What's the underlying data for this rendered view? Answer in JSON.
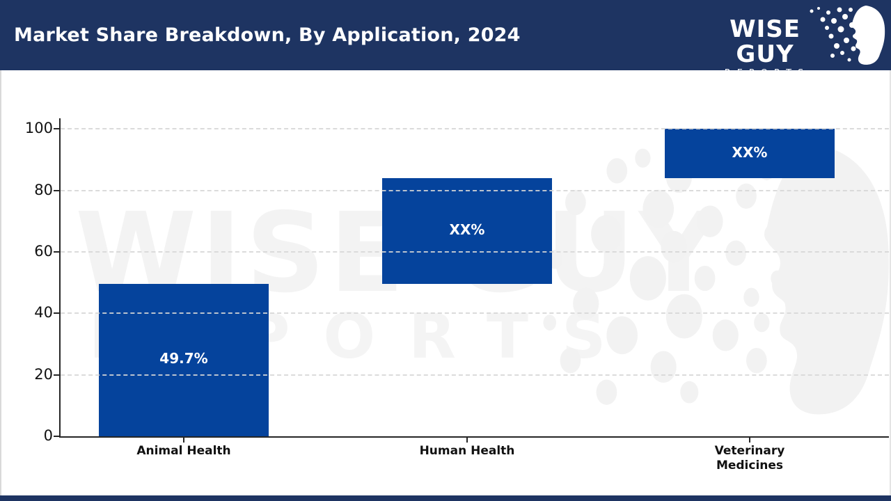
{
  "header": {
    "title": "Market Share Breakdown, By Application, 2024",
    "logo": {
      "line1": "WISE GUY",
      "line2": "REPORTS"
    }
  },
  "watermark": {
    "line1": "WISE GUY",
    "line2": "REPORTS"
  },
  "chart_data": {
    "type": "bar",
    "subtype": "floating-segment-bar",
    "title": "Market Share Breakdown, By Application, 2024",
    "categories": [
      "Animal Health",
      "Human Health",
      "Veterinary Medicines"
    ],
    "category_lines": [
      [
        "Animal Health"
      ],
      [
        "Human Health"
      ],
      [
        "Veterinary",
        "Medicines"
      ]
    ],
    "series": [
      {
        "name": "Market share (%)",
        "segments": [
          {
            "category": "Animal Health",
            "from": 0,
            "to": 49.7,
            "label": "49.7%"
          },
          {
            "category": "Human Health",
            "from": 49.7,
            "to": 84,
            "label": "XX%"
          },
          {
            "category": "Veterinary Medicines",
            "from": 84,
            "to": 100,
            "label": "XX%"
          }
        ]
      }
    ],
    "yticks": [
      0,
      20,
      40,
      60,
      80,
      100
    ],
    "ylim": [
      0,
      103.5
    ],
    "grid": "horizontal-dashed",
    "legend": "none",
    "xlabel": "",
    "ylabel": ""
  },
  "colors": {
    "header_bg": "#1e3462",
    "bar": "#05439c",
    "grid": "#d6d6d6",
    "axis": "#262626",
    "bar_label": "#ffffff",
    "watermark": "#f3f3f3"
  }
}
